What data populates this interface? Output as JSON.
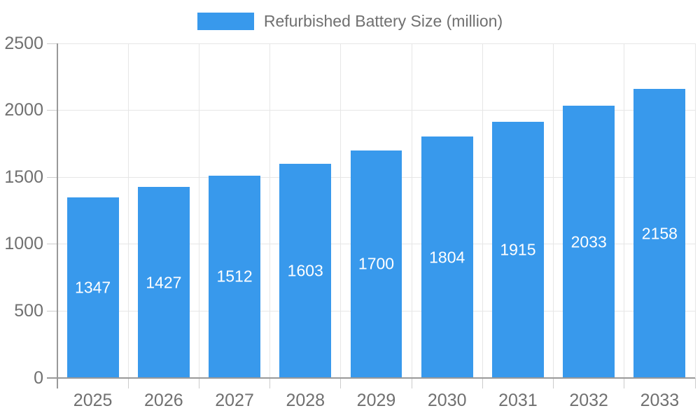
{
  "chart_data": {
    "type": "bar",
    "title": "Refurbished Battery Size (million)",
    "legend_position": "top",
    "legend_items": [
      "Refurbished Battery Size (million)"
    ],
    "categories": [
      "2025",
      "2026",
      "2027",
      "2028",
      "2029",
      "2030",
      "2031",
      "2032",
      "2033"
    ],
    "series": [
      {
        "name": "Refurbished Battery Size (million)",
        "values": [
          1347,
          1427,
          1512,
          1603,
          1700,
          1804,
          1915,
          2033,
          2158
        ]
      }
    ],
    "value_labels": [
      "1347",
      "1427",
      "1512",
      "1603",
      "1700",
      "1804",
      "1915",
      "2033",
      "2158"
    ],
    "xlabel": "",
    "ylabel": "",
    "ylim": [
      0,
      2500
    ],
    "yticks": [
      "0",
      "500",
      "1000",
      "1500",
      "2000",
      "2500"
    ],
    "grid": true,
    "colors": {
      "bar": "#3899ec",
      "axis_line": "#999999",
      "tick_mark": "#cccccc",
      "gridline": "#e6e6e6",
      "axis_text": "#707070",
      "legend_text": "#707070",
      "value_label_text": "#ffffff",
      "background": "#ffffff"
    }
  }
}
